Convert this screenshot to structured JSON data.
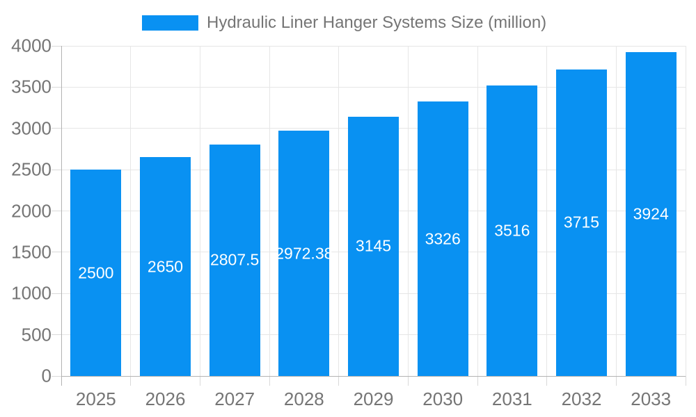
{
  "legend": {
    "label": "Hydraulic Liner Hanger Systems Size (million)"
  },
  "chart_data": {
    "type": "bar",
    "title": "Hydraulic Liner Hanger Systems Size (million)",
    "categories": [
      "2025",
      "2026",
      "2027",
      "2028",
      "2029",
      "2030",
      "2031",
      "2032",
      "2033"
    ],
    "values": [
      2500,
      2650,
      2807.5,
      2972.38,
      3145,
      3326,
      3516,
      3715,
      3924
    ],
    "value_labels": [
      "2500",
      "2650",
      "2807.5",
      "2972.38",
      "3145",
      "3326",
      "3516",
      "3715",
      "3924"
    ],
    "xlabel": "",
    "ylabel": "",
    "ylim": [
      0,
      4000
    ],
    "yticks": [
      0,
      500,
      1000,
      1500,
      2000,
      2500,
      3000,
      3500,
      4000
    ],
    "grid": true,
    "legend_position": "top",
    "colors": {
      "bar": "#0991f2",
      "bar_label_text": "#ffffff",
      "axis_text": "#757575",
      "gridline": "#e6e6e6",
      "axis_line": "#b3b3b3",
      "tick": "#d9d9d9",
      "background": "#ffffff"
    }
  }
}
